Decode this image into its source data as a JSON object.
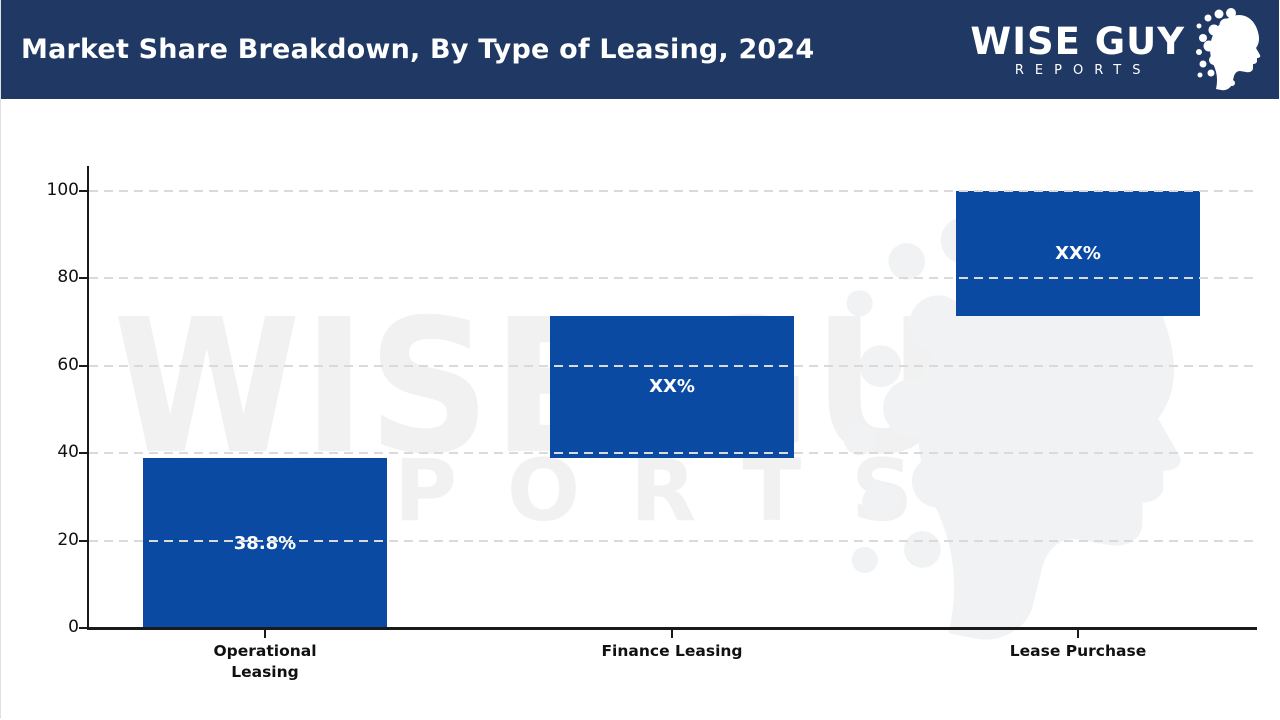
{
  "header": {
    "title": "Market Share Breakdown, By Type of Leasing, 2024",
    "bg_color": "#1f3864",
    "logo": {
      "line1": "WISE GUY",
      "line2": "REPORTS"
    }
  },
  "watermark": {
    "line1": "WISE GUY",
    "line2": "REPORTS"
  },
  "chart_data": {
    "type": "bar",
    "subtype": "waterfall",
    "title": "Market Share Breakdown, By Type of Leasing, 2024",
    "categories": [
      "Operational\nLeasing",
      "Finance Leasing",
      "Lease Purchase"
    ],
    "segments": [
      {
        "category": "Operational Leasing",
        "start": 0,
        "end": 38.8,
        "label": "38.8%"
      },
      {
        "category": "Finance Leasing",
        "start": 38.8,
        "end": 71.4,
        "label": "XX%"
      },
      {
        "category": "Lease Purchase",
        "start": 71.4,
        "end": 100,
        "label": "XX%"
      }
    ],
    "y_ticks": [
      0,
      20,
      40,
      60,
      80,
      100
    ],
    "ylim": [
      0,
      105
    ],
    "xlabel": "",
    "ylabel": "",
    "grid": "horizontal-dashed",
    "bar_color": "#0b4aa2",
    "bar_label_color": "#ffffff",
    "axis_color": "#1a1a1a",
    "gridline_color": "#dadada",
    "legend": "none"
  }
}
